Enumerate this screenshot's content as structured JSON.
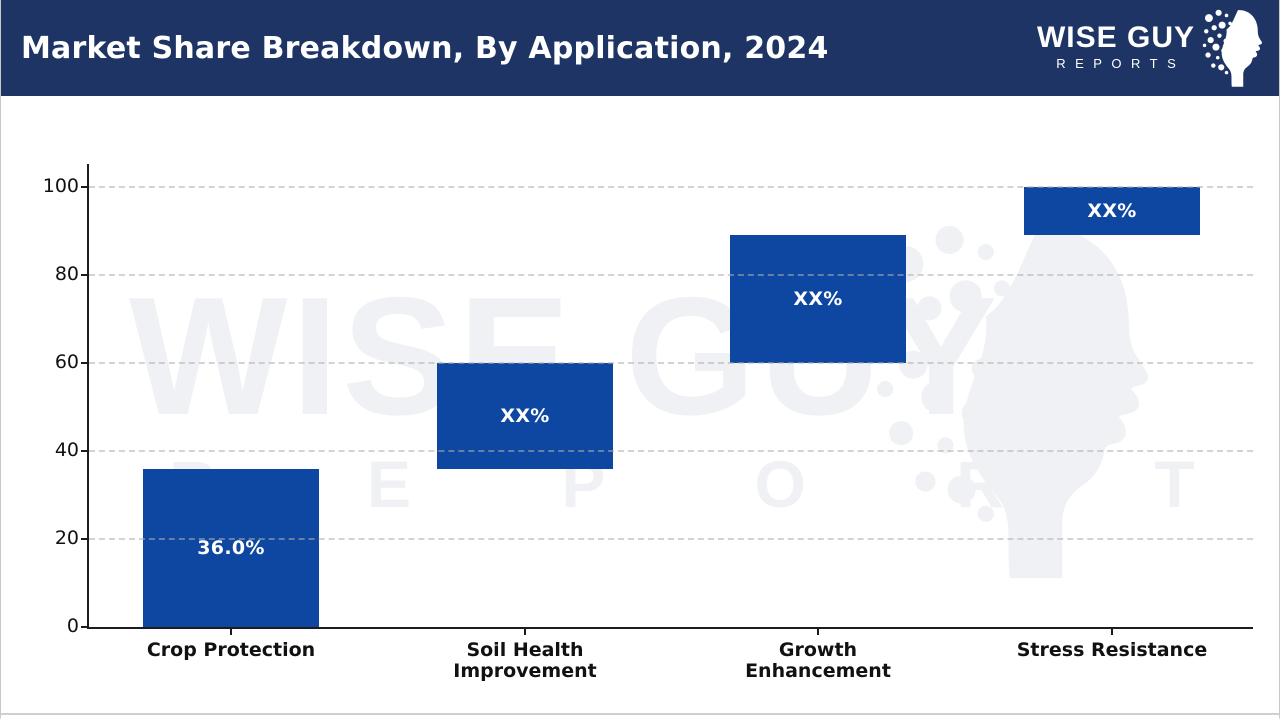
{
  "header": {
    "title": "Market Share Breakdown, By Application, 2024",
    "background_color": "#1e3464",
    "logo": {
      "brand": "WISE GUY",
      "sub": "REPORTS",
      "icon": "dotted-head-profile"
    }
  },
  "watermark": {
    "brand": "WISE GUY",
    "sub": "R E P O R T S",
    "icon": "dotted-head-profile",
    "color": "#f0f1f4"
  },
  "chart_data": {
    "type": "bar",
    "variant": "floating-segments-waterfall",
    "title": "Market Share Breakdown, By Application, 2024",
    "categories": [
      "Crop Protection",
      "Soil Health Improvement",
      "Growth Enhancement",
      "Stress Resistance"
    ],
    "segments": [
      {
        "category": "Crop Protection",
        "start": 0,
        "end": 36,
        "label": "36.0%"
      },
      {
        "category": "Soil Health Improvement",
        "start": 36,
        "end": 60,
        "label": "XX%"
      },
      {
        "category": "Growth Enhancement",
        "start": 60,
        "end": 89,
        "label": "XX%"
      },
      {
        "category": "Stress Resistance",
        "start": 89,
        "end": 100,
        "label": "XX%"
      }
    ],
    "yticks": [
      0,
      20,
      40,
      60,
      80,
      100
    ],
    "ylim": [
      0,
      106
    ],
    "xlabel": "",
    "ylabel": "",
    "grid": "horizontal-dashed",
    "legend": "none",
    "colors": {
      "bar": "#0e47a1",
      "bar_label": "#ffffff",
      "grid": "#c8c8c8",
      "axis": "#1c1c1c",
      "tick_text": "#111111"
    }
  }
}
